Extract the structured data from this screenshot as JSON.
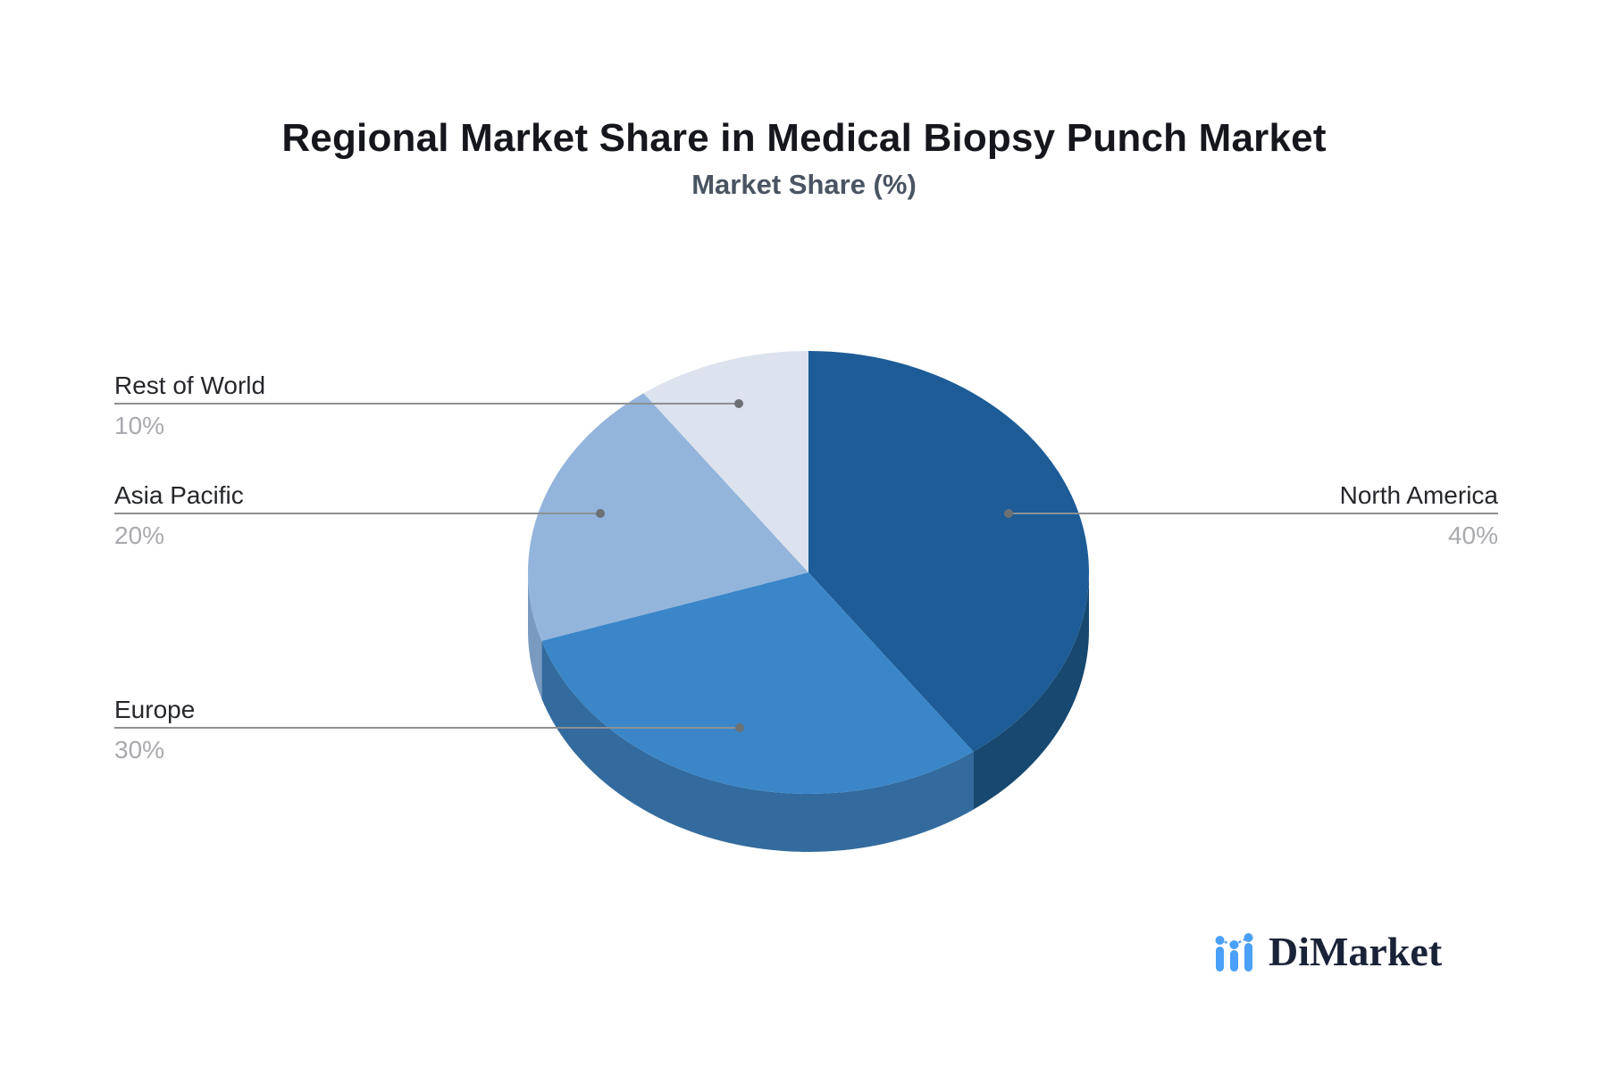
{
  "header": {
    "title": "Regional Market Share in Medical Biopsy Punch Market",
    "subtitle": "Market Share (%)"
  },
  "chart_data": {
    "type": "pie",
    "title": "Regional Market Share in Medical Biopsy Punch Market",
    "subtitle": "Market Share (%)",
    "unit": "%",
    "start_angle_deg": 0,
    "direction": "clockwise",
    "style_3d": true,
    "legend": false,
    "labels_position": "outside-leader-lines",
    "slices": [
      {
        "label": "North America",
        "value": 40,
        "percent_label": "40%",
        "color": "#1d5c97",
        "side_color": "#17486f"
      },
      {
        "label": "Europe",
        "value": 30,
        "percent_label": "30%",
        "color": "#3a86c8",
        "side_color": "#336b9e"
      },
      {
        "label": "Asia Pacific",
        "value": 20,
        "percent_label": "20%",
        "color": "#93b5dc",
        "side_color": "#7a9ac0"
      },
      {
        "label": "Rest of World",
        "value": 10,
        "percent_label": "10%",
        "color": "#dce3ee",
        "side_color": "#b9c5d8"
      }
    ]
  },
  "style": {
    "leader_line_color": "#8e9093",
    "leader_dot_color": "#6d7073",
    "label_color": "#25272b",
    "value_color": "#a8aaae",
    "title_color": "#15171c",
    "subtitle_color": "#4a5462",
    "background": "#ffffff"
  },
  "logo": {
    "text": "DiMarket",
    "icon": "bar-line-chart-icon",
    "text_color": "#1a2238",
    "icon_color": "#4aa0fa"
  }
}
